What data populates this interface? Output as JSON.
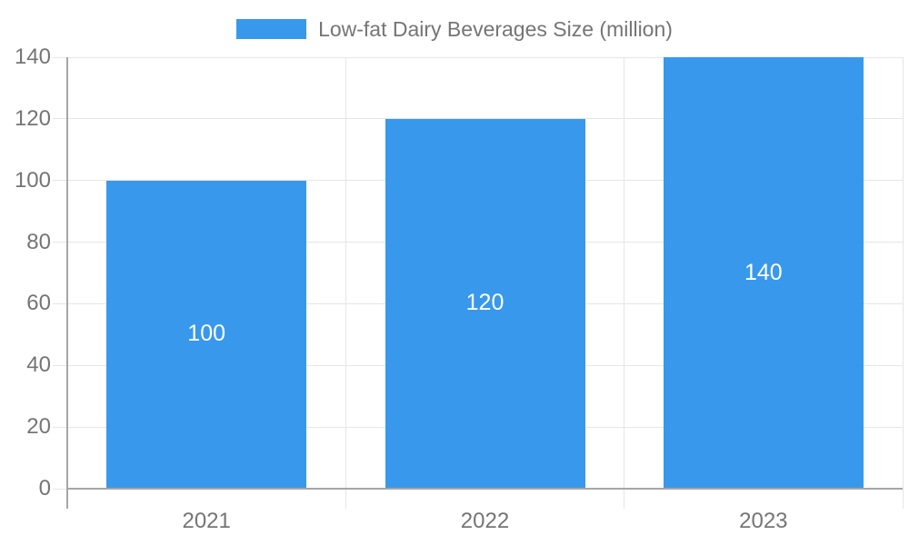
{
  "legend": {
    "label": "Low-fat Dairy Beverages Size (million)"
  },
  "chart_data": {
    "type": "bar",
    "title": "",
    "categories": [
      "2021",
      "2022",
      "2023"
    ],
    "series": [
      {
        "name": "Low-fat Dairy Beverages Size (million)",
        "values": [
          100,
          120,
          140
        ]
      }
    ],
    "data_labels": [
      "100",
      "120",
      "140"
    ],
    "xlabel": "",
    "ylabel": "",
    "ylim": [
      0,
      140
    ],
    "yticks": [
      0,
      20,
      40,
      60,
      80,
      100,
      120,
      140
    ],
    "grid": true,
    "legend_position": "top-center",
    "colors": {
      "bar": "#3899ec",
      "axis": "#a6a6a6",
      "gridline": "#e6e6e6",
      "tick_text": "#757575",
      "bar_label": "#ffffff",
      "background": "#ffffff"
    }
  }
}
